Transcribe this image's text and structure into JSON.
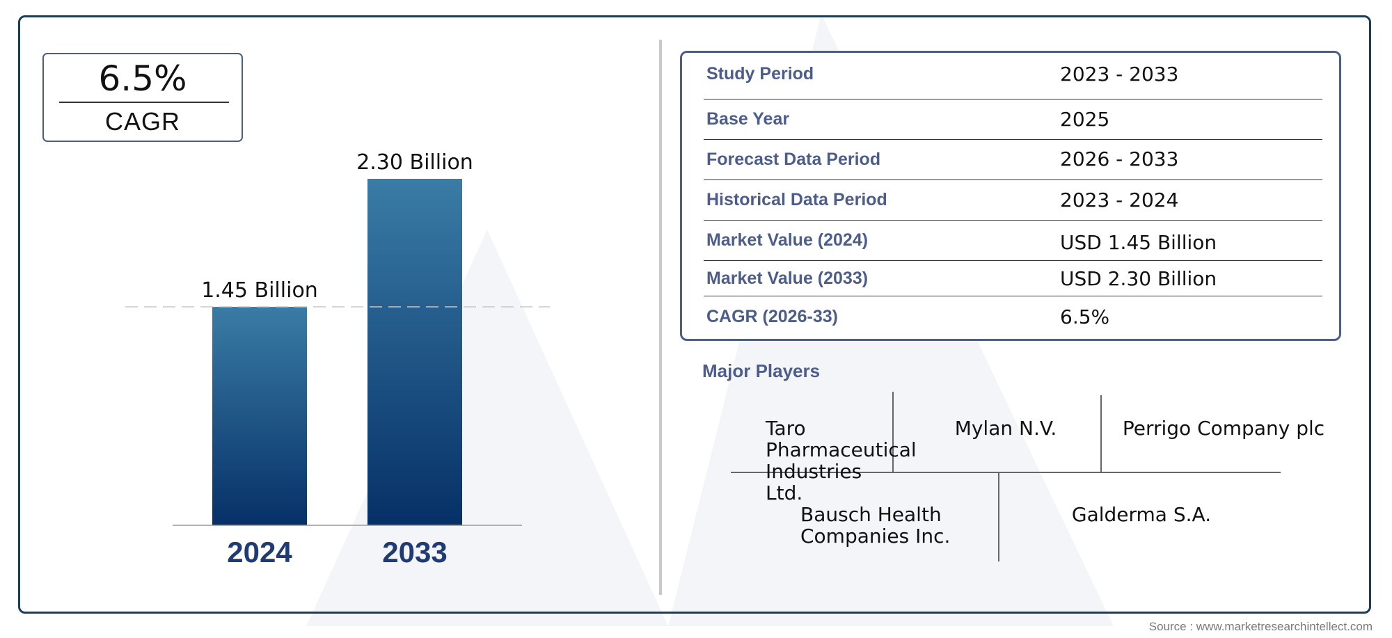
{
  "cagr": {
    "value": "6.5%",
    "label": "CAGR"
  },
  "chart_data": {
    "type": "bar",
    "categories": [
      "2024",
      "2033"
    ],
    "values": [
      1.45,
      2.3
    ],
    "value_labels": [
      "1.45 Billion",
      "2.30 Billion"
    ],
    "title": "",
    "xlabel": "",
    "ylabel": "",
    "ylim": [
      0,
      2.3
    ],
    "grid": false,
    "reference_line": "dashed line at 2024 value",
    "colors": {
      "bar_top": "#3a7ca6",
      "bar_bottom": "#063067",
      "tick_label": "#1f3b73"
    }
  },
  "summary": {
    "rows": [
      {
        "key": "Study Period",
        "value": "2023 - 2033"
      },
      {
        "key": "Base Year",
        "value": "2025"
      },
      {
        "key": "Forecast Data Period",
        "value": "2026 - 2033"
      },
      {
        "key": "Historical Data Period",
        "value": "2023 - 2024"
      },
      {
        "key": "Market Value (2024)",
        "value": "USD 1.45 Billion"
      },
      {
        "key": "Market Value (2033)",
        "value": "USD 2.30 Billion"
      },
      {
        "key": "CAGR (2026-33)",
        "value": "6.5%"
      }
    ]
  },
  "players": {
    "title": "Major Players",
    "names": [
      "Taro Pharmaceutical Industries Ltd.",
      "Mylan N.V.",
      "Perrigo Company plc",
      "Bausch Health Companies Inc.",
      "Galderma S.A."
    ]
  },
  "source": "Source : www.marketresearchintellect.com",
  "colors": {
    "frame": "#1c3d52",
    "accent": "#4d5d8a"
  }
}
